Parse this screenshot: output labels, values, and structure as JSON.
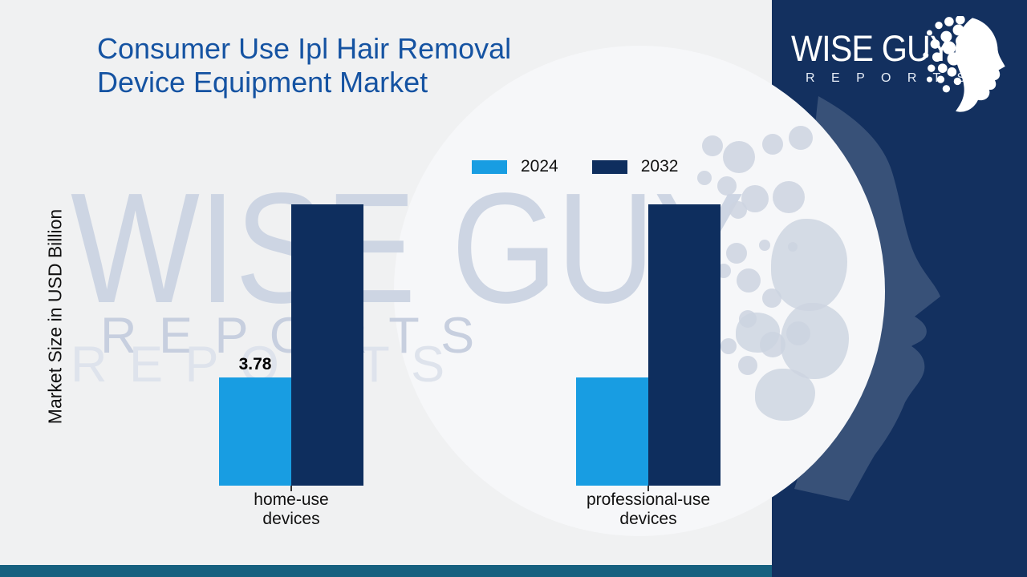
{
  "title": {
    "lines": [
      "Consumer Use Ipl Hair Removal",
      "Device Equipment Market"
    ],
    "full": "Consumer Use Ipl Hair Removal Device Equipment Market"
  },
  "watermark": {
    "line1": "WISE GUY",
    "line2": "R E P O R T S",
    "echo": "R E P O R T S"
  },
  "logo": {
    "line1": "WISE GUY",
    "line2": "R E P O R T S"
  },
  "colors": {
    "accent_2024": "#189de2",
    "accent_2032": "#0e2e5e",
    "brand_panel": "#13305f",
    "bottom_bar": "#16607f",
    "title_blue": "#1553a2"
  },
  "chart_data": {
    "type": "bar",
    "title": "Consumer Use Ipl Hair Removal Device Equipment Market",
    "xlabel": "",
    "ylabel": "Market Size in USD Billion",
    "categories": [
      "home-use devices",
      "professional-use devices"
    ],
    "category_lines": [
      [
        "home-use",
        "devices"
      ],
      [
        "professional-use",
        "devices"
      ]
    ],
    "series": [
      {
        "name": "2024",
        "color": "#189de2",
        "values": [
          3.78,
          3.78
        ]
      },
      {
        "name": "2032",
        "color": "#0e2e5e",
        "values": [
          9.8,
          9.8
        ]
      }
    ],
    "value_labels": [
      [
        "3.78",
        ""
      ],
      [
        "",
        ""
      ]
    ],
    "ylim": [
      0,
      10.5
    ],
    "grid": false,
    "legend_position": "top-center"
  }
}
